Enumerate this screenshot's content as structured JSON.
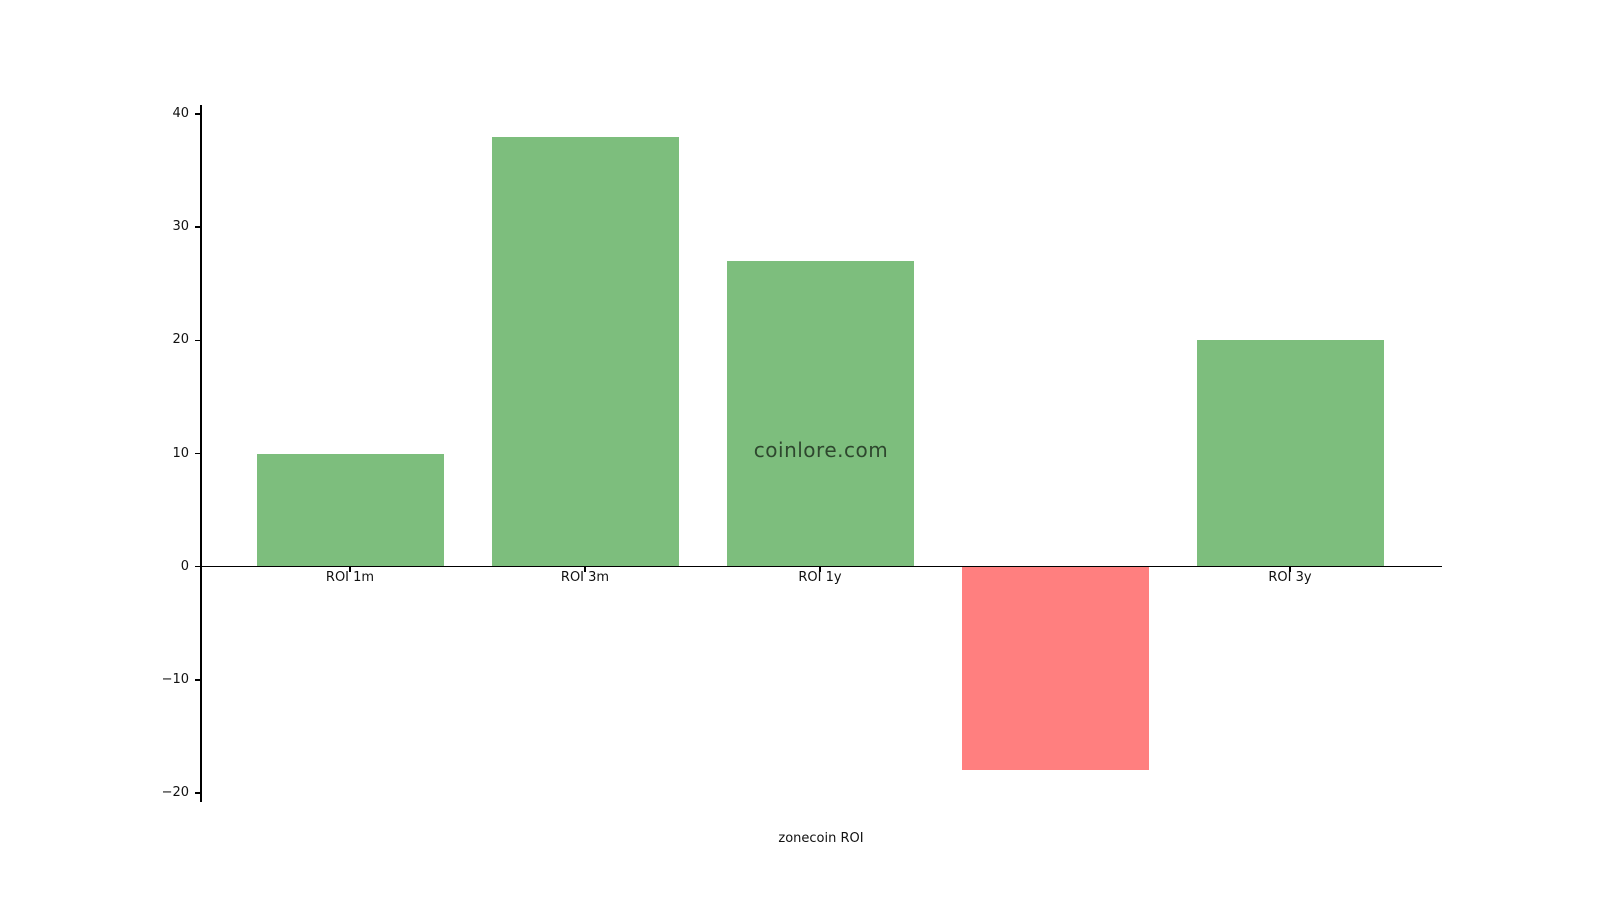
{
  "chart_data": {
    "type": "bar",
    "title": "",
    "xlabel": "zonecoin ROI",
    "ylabel": "",
    "watermark": "coinlore.com",
    "categories": [
      "ROI 1m",
      "ROI 3m",
      "ROI 1y",
      "",
      "ROI 3y"
    ],
    "values": [
      10,
      38,
      27,
      -18,
      20
    ],
    "bar_colors": [
      "#7dbe7d",
      "#7dbe7d",
      "#7dbe7d",
      "#ff7f7f",
      "#7dbe7d"
    ],
    "positive_color": "#7dbe7d",
    "negative_color": "#ff7f7f",
    "axis_color": "#000000",
    "text_color": "#111111",
    "ylim": [
      -20.8,
      40.8
    ],
    "yticks": [
      {
        "value": 40,
        "label": "40"
      },
      {
        "value": 30,
        "label": "30"
      },
      {
        "value": 20,
        "label": "20"
      },
      {
        "value": 10,
        "label": "10"
      },
      {
        "value": 0,
        "label": "0"
      },
      {
        "value": -10,
        "label": "−10"
      },
      {
        "value": -20,
        "label": "−20"
      }
    ],
    "grid": false,
    "legend": null
  }
}
